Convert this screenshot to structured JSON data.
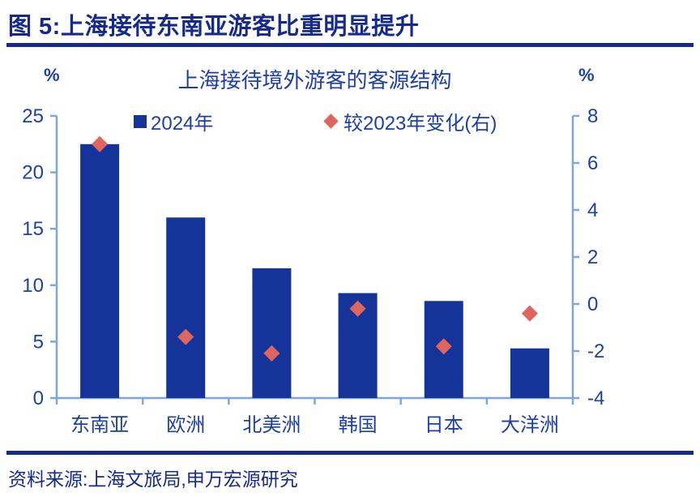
{
  "header": {
    "title": "图 5:上海接待东南亚游客比重明显提升"
  },
  "footer": {
    "source": "资料来源:上海文旅局,申万宏源研究"
  },
  "chart": {
    "title": "上海接待境外游客的客源结构",
    "left_axis_unit": "%",
    "right_axis_unit": "%",
    "legend": [
      {
        "label": "2024年",
        "marker": "square-icon",
        "color": "#15349a"
      },
      {
        "label": "较2023年变化(右)",
        "marker": "diamond-icon",
        "color": "#e0655f"
      }
    ]
  },
  "chart_data": {
    "type": "bar",
    "title": "上海接待境外游客的客源结构",
    "categories": [
      "东南亚",
      "欧洲",
      "北美洲",
      "韩国",
      "日本",
      "大洋洲"
    ],
    "series": [
      {
        "name": "2024年",
        "type": "bar",
        "axis": "left",
        "color": "#15349a",
        "values": [
          22.5,
          16.0,
          11.5,
          9.3,
          8.6,
          4.4
        ]
      },
      {
        "name": "较2023年变化(右)",
        "type": "scatter",
        "marker": "diamond",
        "axis": "right",
        "color": "#e0655f",
        "values": [
          6.8,
          -1.4,
          -2.1,
          -0.2,
          -1.8,
          -0.4
        ]
      }
    ],
    "left_axis": {
      "unit": "%",
      "min": 0,
      "max": 25,
      "ticks": [
        0,
        5,
        10,
        15,
        20,
        25
      ]
    },
    "right_axis": {
      "unit": "%",
      "min": -4,
      "max": 8,
      "ticks": [
        -4,
        -2,
        0,
        2,
        4,
        6,
        8
      ]
    },
    "grid": false,
    "legend_position": "top"
  },
  "colors": {
    "header_navy": "#152a8c",
    "chart_text_blue": "#1d3fa9",
    "axis_line_blue": "#7da7d9",
    "bar_navy": "#15349a",
    "diamond_red": "#e0655f"
  }
}
